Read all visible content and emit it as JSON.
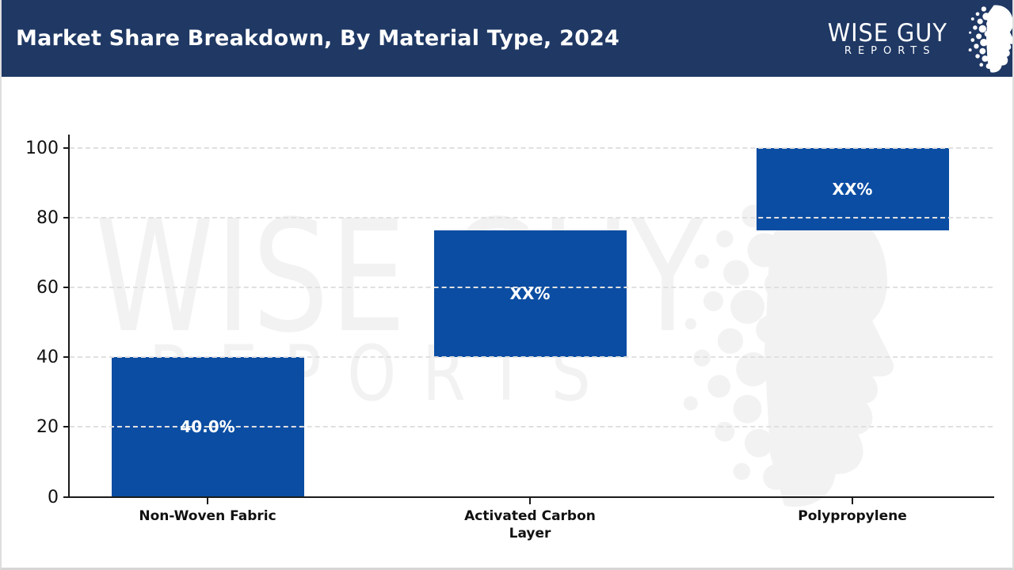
{
  "header": {
    "title": "Market Share Breakdown, By Material Type, 2024",
    "bg_color": "#1f3864",
    "logo": {
      "line1": "WISE GUY",
      "line2": "REPORTS"
    }
  },
  "watermark": {
    "line1": "WISE GUY",
    "line2": "REPORTS"
  },
  "chart_data": {
    "type": "bar",
    "subtype": "waterfall",
    "title": "Market Share Breakdown, By Material Type, 2024",
    "categories": [
      "Non-Woven Fabric",
      "Activated Carbon Layer",
      "Polypropylene"
    ],
    "bars": [
      {
        "category": "Non-Woven Fabric",
        "start": 0,
        "end": 40,
        "value_label": "40.0%"
      },
      {
        "category": "Activated Carbon Layer",
        "start": 40,
        "end": 76.4,
        "value_label": "XX%"
      },
      {
        "category": "Polypropylene",
        "start": 76.4,
        "end": 100,
        "value_label": "XX%"
      }
    ],
    "y_ticks": [
      0,
      20,
      40,
      60,
      80,
      100
    ],
    "ylim": [
      0,
      104
    ],
    "xlabel": "",
    "ylabel": "",
    "grid": "horizontal-dashed",
    "legend": "none",
    "bar_color": "#0b4da2",
    "bar_label_color": "#ffffff",
    "axis_color": "#1a1a1a"
  }
}
